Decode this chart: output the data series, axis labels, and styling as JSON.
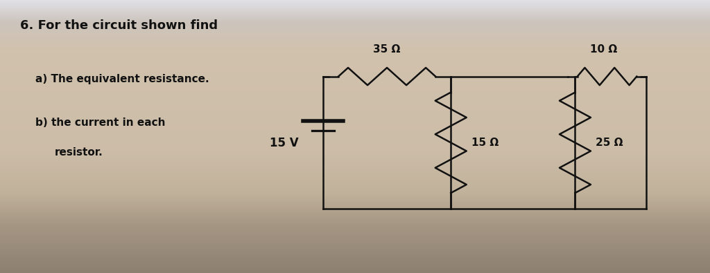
{
  "title": "6. For the circuit shown find",
  "question_a": "a) The equivalent resistance.",
  "question_b": "b) the current in each",
  "question_b2": "resistor.",
  "bg_top": "#c8c4be",
  "bg_mid": "#c9bda8",
  "bg_bot": "#a09484",
  "text_color": "#111111",
  "circuit_color": "#111111",
  "label_35": "35 Ω",
  "label_10": "10 Ω",
  "label_15": "15 Ω",
  "label_25": "25 Ω",
  "label_bat": "15 V",
  "xL": 0.455,
  "xM": 0.635,
  "xR2": 0.81,
  "xFR": 0.91,
  "yTop": 0.72,
  "yBot": 0.235,
  "bat_ymid": 0.54,
  "figsize": [
    10.24,
    3.95
  ],
  "dpi": 100
}
